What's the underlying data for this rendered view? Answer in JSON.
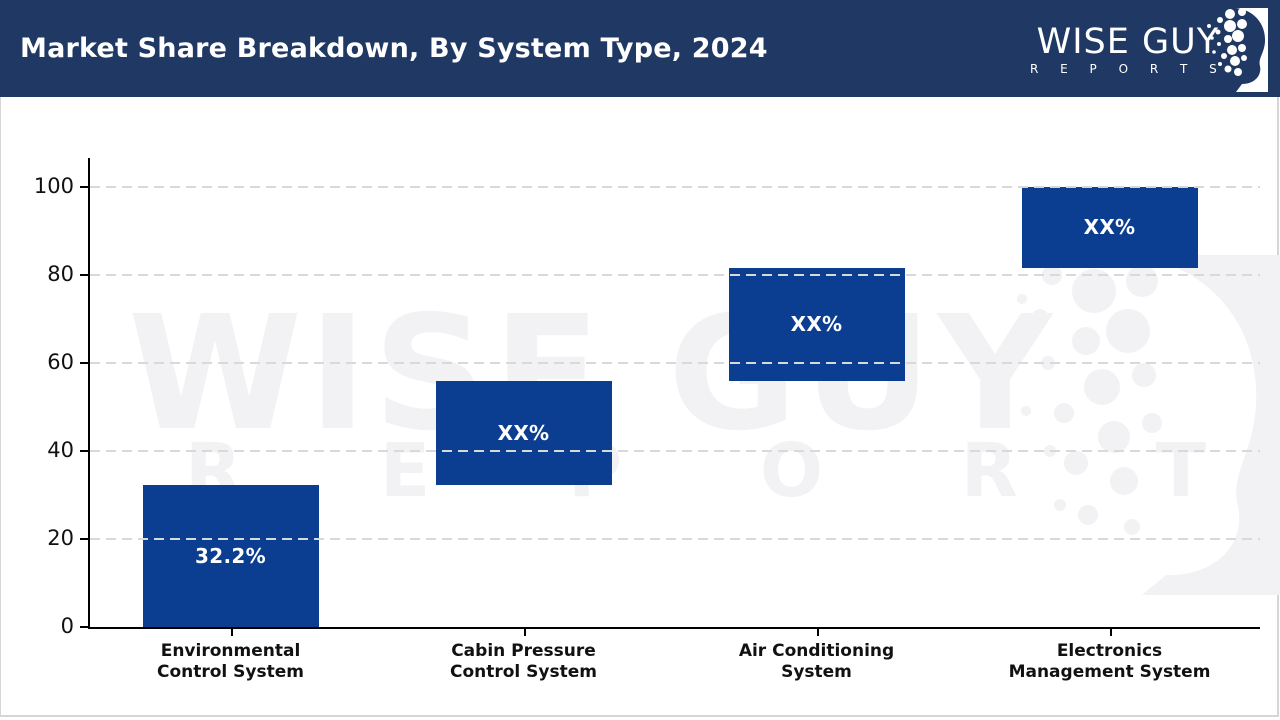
{
  "header": {
    "title": "Market Share Breakdown, By System Type, 2024",
    "logo": {
      "line1": "WISE GUY",
      "line2": "R E P O R T S"
    }
  },
  "watermark": {
    "line1": "WISE GUY",
    "line2": "R E P O R T S"
  },
  "colors": {
    "header_bg": "#1F3864",
    "bar": "#0B3D91",
    "bar_label": "#FFFFFF",
    "grid": "#D9D9D9",
    "axis": "#000000",
    "watermark": "#F2F2F4"
  },
  "chart_data": {
    "type": "bar",
    "subtype": "waterfall",
    "title": "Market Share Breakdown, By System Type, 2024",
    "xlabel": "",
    "ylabel": "",
    "ylim": [
      0,
      105
    ],
    "y_ticks": [
      0,
      20,
      40,
      60,
      80,
      100
    ],
    "grid": "dashed-horizontal-over-bars",
    "legend": "none",
    "categories": [
      [
        "Environmental",
        "Control System"
      ],
      [
        "Cabin Pressure",
        "Control System"
      ],
      [
        "Air Conditioning",
        "System"
      ],
      [
        "Electronics",
        "Management System"
      ]
    ],
    "bars": [
      {
        "start": 0,
        "end": 32.2,
        "value_label": "32.2%"
      },
      {
        "start": 32.2,
        "end": 56.0,
        "value_label": "XX%"
      },
      {
        "start": 56.0,
        "end": 81.6,
        "value_label": "XX%"
      },
      {
        "start": 81.6,
        "end": 100,
        "value_label": "XX%"
      }
    ]
  }
}
